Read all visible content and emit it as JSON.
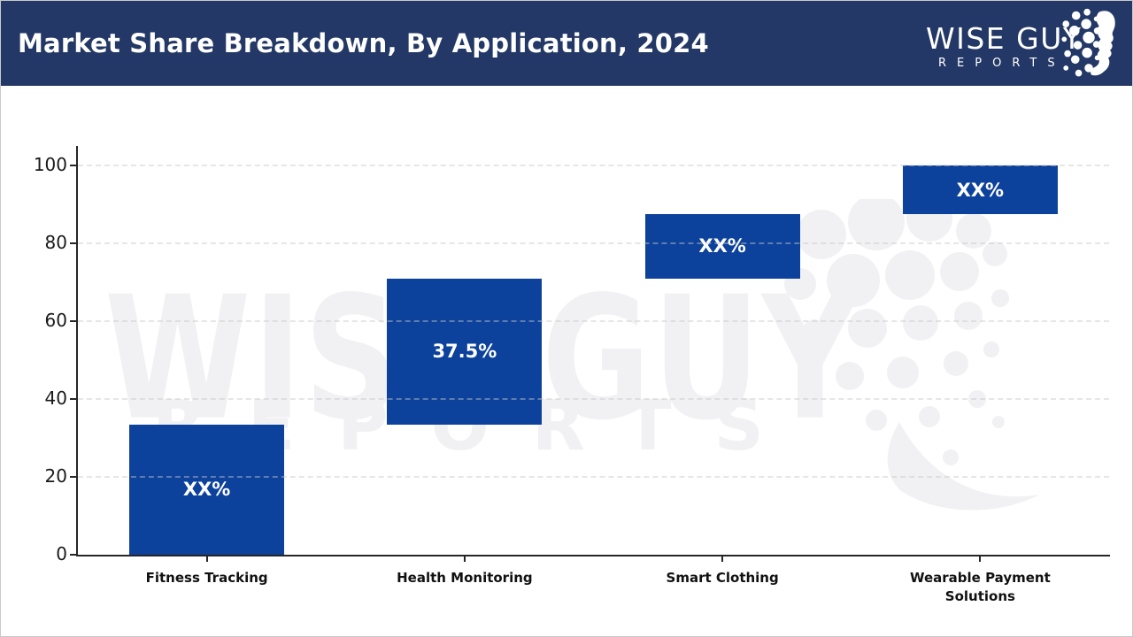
{
  "header": {
    "bg_color": "#233866",
    "title": "Market Share Breakdown, By Application, 2024",
    "logo": {
      "name": "WISE GUY",
      "sub": "REPORTS"
    }
  },
  "watermark": {
    "line1": "WISE GUY",
    "line2": "REPORTS"
  },
  "chart_data": {
    "type": "bar",
    "subtype": "waterfall-floating-bars",
    "title": "Market Share Breakdown, By Application, 2024",
    "categories": [
      "Fitness Tracking",
      "Health Monitoring",
      "Smart Clothing",
      "Wearable Payment Solutions"
    ],
    "series": [
      {
        "name": "Fitness Tracking",
        "start": 0,
        "end": 33.5,
        "label": "XX%"
      },
      {
        "name": "Health Monitoring",
        "start": 33.5,
        "end": 71,
        "label": "37.5%"
      },
      {
        "name": "Smart Clothing",
        "start": 71,
        "end": 87.5,
        "label": "XX%"
      },
      {
        "name": "Wearable Payment Solutions",
        "start": 87.5,
        "end": 100,
        "label": "XX%"
      }
    ],
    "xlabel": "",
    "ylabel": "",
    "yticks": [
      0,
      20,
      40,
      60,
      80,
      100
    ],
    "ylim": [
      0,
      105
    ],
    "grid": "horizontal-dashed",
    "legend": false,
    "bar_color": "#0c419c",
    "bar_label_color": "#ffffff",
    "grid_color": "#d9d9d9",
    "axis_color": "#262626"
  }
}
